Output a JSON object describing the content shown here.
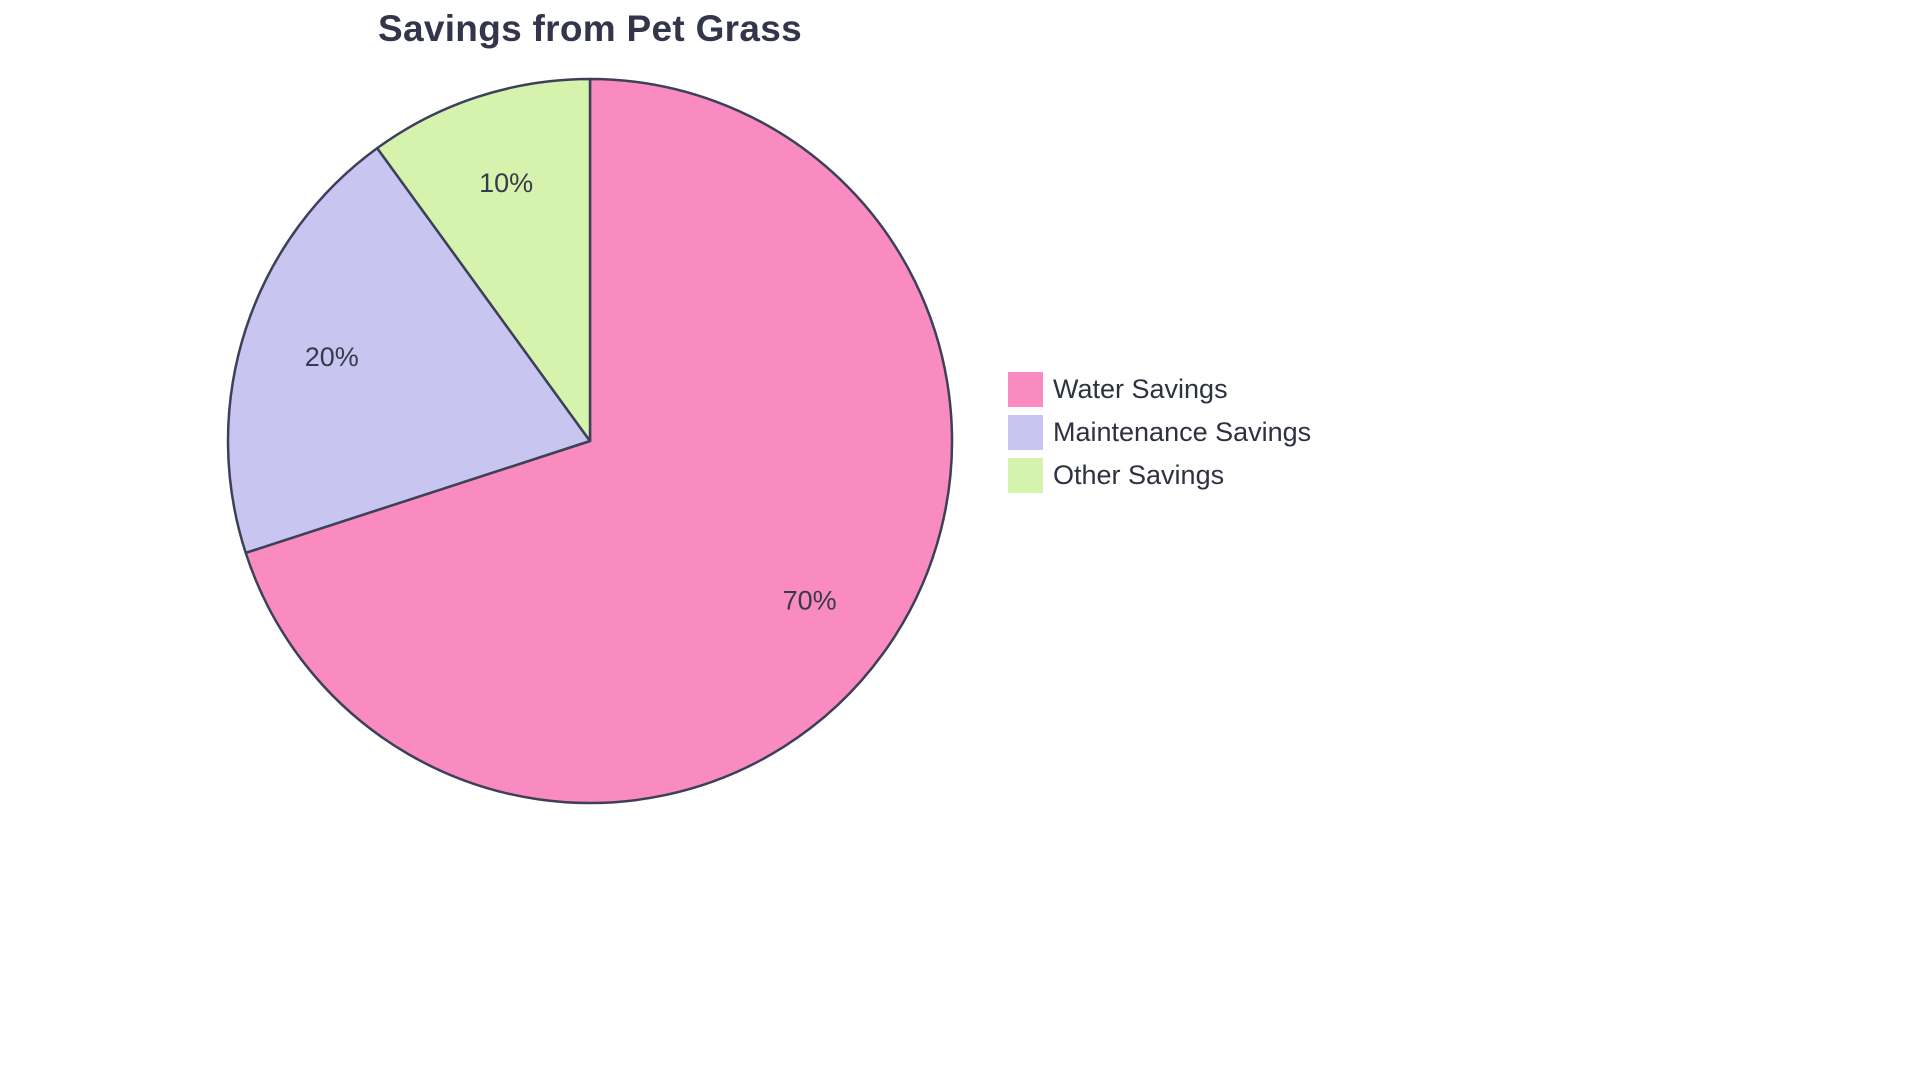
{
  "chart_data": {
    "type": "pie",
    "title": "Savings from Pet Grass",
    "labels": [
      "Water Savings",
      "Maintenance Savings",
      "Other Savings"
    ],
    "values": [
      70,
      20,
      10
    ],
    "slice_labels": [
      "70%",
      "20%",
      "10%"
    ],
    "colors": [
      "#F98BC0",
      "#C8C5F0",
      "#D6F3AE"
    ],
    "outline_color": "#3C4058",
    "text_color": "#363A4E",
    "background": "#FFFFFF",
    "start_angle_deg": 0,
    "direction": "clockwise",
    "legend_position": "right",
    "grid": false
  }
}
